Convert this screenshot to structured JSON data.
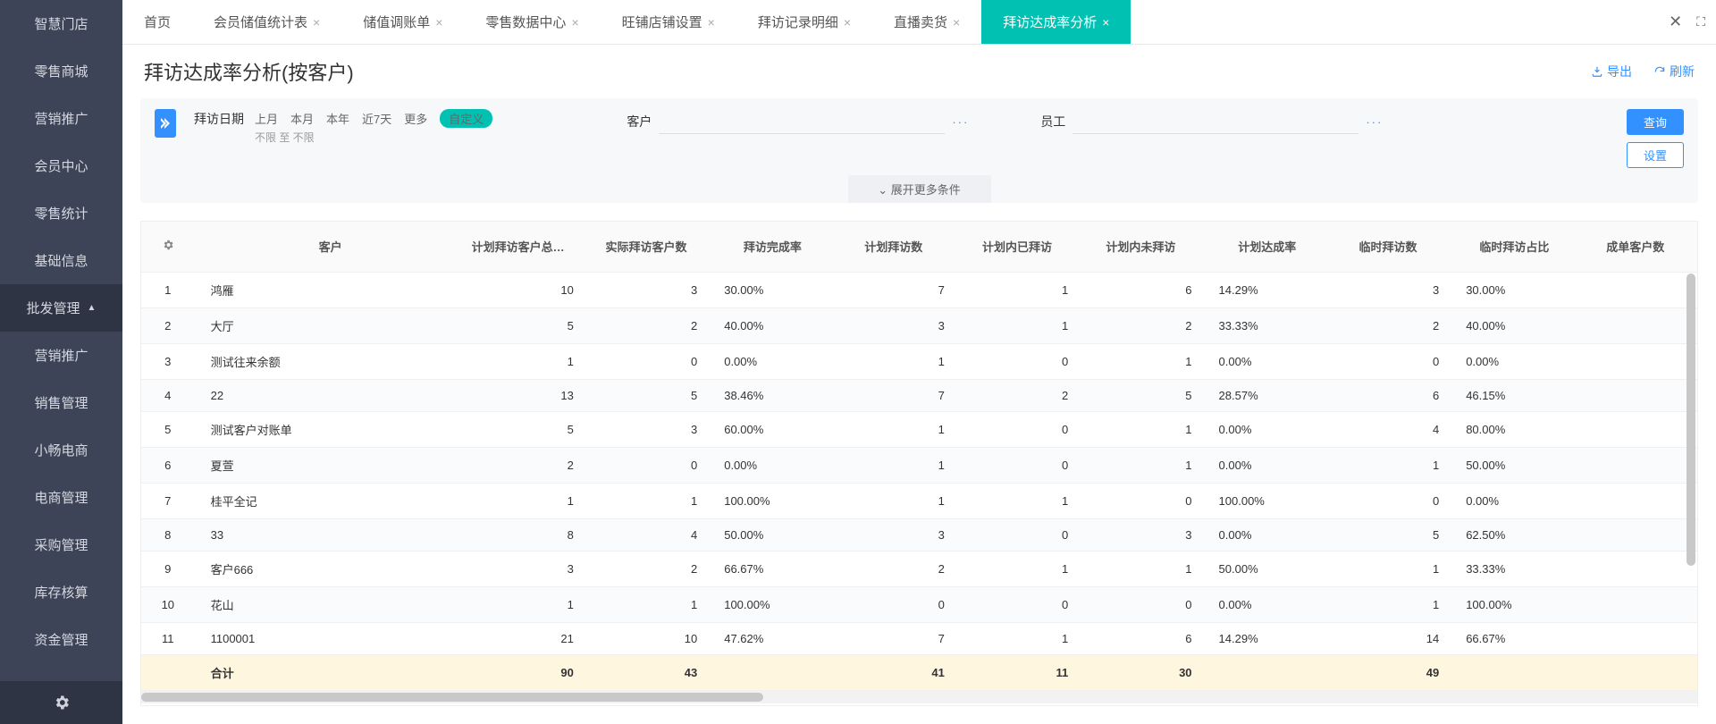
{
  "sidebar": {
    "items": [
      {
        "label": "智慧门店"
      },
      {
        "label": "零售商城"
      },
      {
        "label": "营销推广"
      },
      {
        "label": "会员中心"
      },
      {
        "label": "零售统计"
      },
      {
        "label": "基础信息"
      },
      {
        "label": "批发管理",
        "expanded": true
      },
      {
        "label": "营销推广"
      },
      {
        "label": "销售管理"
      },
      {
        "label": "小畅电商"
      },
      {
        "label": "电商管理"
      },
      {
        "label": "采购管理"
      },
      {
        "label": "库存核算"
      },
      {
        "label": "资金管理"
      }
    ]
  },
  "tabs": [
    {
      "label": "首页",
      "closable": false
    },
    {
      "label": "会员储值统计表",
      "closable": true
    },
    {
      "label": "储值调账单",
      "closable": true
    },
    {
      "label": "零售数据中心",
      "closable": true
    },
    {
      "label": "旺铺店铺设置",
      "closable": true
    },
    {
      "label": "拜访记录明细",
      "closable": true
    },
    {
      "label": "直播卖货",
      "closable": true
    },
    {
      "label": "拜访达成率分析",
      "closable": true,
      "active": true
    }
  ],
  "page": {
    "title": "拜访达成率分析(按客户)",
    "export": "导出",
    "refresh": "刷新"
  },
  "filter": {
    "date_label": "拜访日期",
    "opts": [
      "上月",
      "本月",
      "本年",
      "近7天",
      "更多"
    ],
    "custom": "自定义",
    "range": "不限 至 不限",
    "customer": "客户",
    "employee": "员工",
    "search": "查询",
    "settings": "设置",
    "expand": "展开更多条件"
  },
  "table": {
    "columns": [
      "",
      "客户",
      "计划拜访客户总数（计划+临时）",
      "实际拜访客户数",
      "拜访完成率",
      "计划拜访数",
      "计划内已拜访",
      "计划内未拜访",
      "计划达成率",
      "临时拜访数",
      "临时拜访占比",
      "成单客户数"
    ],
    "rows": [
      {
        "i": "1",
        "c": "鸿雁",
        "v": [
          "10",
          "3",
          "30.00%",
          "7",
          "1",
          "6",
          "14.29%",
          "3",
          "30.00%"
        ]
      },
      {
        "i": "2",
        "c": "大厅",
        "v": [
          "5",
          "2",
          "40.00%",
          "3",
          "1",
          "2",
          "33.33%",
          "2",
          "40.00%"
        ]
      },
      {
        "i": "3",
        "c": "测试往来余额",
        "v": [
          "1",
          "0",
          "0.00%",
          "1",
          "0",
          "1",
          "0.00%",
          "0",
          "0.00%"
        ]
      },
      {
        "i": "4",
        "c": "22",
        "v": [
          "13",
          "5",
          "38.46%",
          "7",
          "2",
          "5",
          "28.57%",
          "6",
          "46.15%"
        ]
      },
      {
        "i": "5",
        "c": "测试客户对账单",
        "v": [
          "5",
          "3",
          "60.00%",
          "1",
          "0",
          "1",
          "0.00%",
          "4",
          "80.00%"
        ]
      },
      {
        "i": "6",
        "c": "夏萱",
        "v": [
          "2",
          "0",
          "0.00%",
          "1",
          "0",
          "1",
          "0.00%",
          "1",
          "50.00%"
        ]
      },
      {
        "i": "7",
        "c": "桂平全记",
        "v": [
          "1",
          "1",
          "100.00%",
          "1",
          "1",
          "0",
          "100.00%",
          "0",
          "0.00%"
        ]
      },
      {
        "i": "8",
        "c": "33",
        "v": [
          "8",
          "4",
          "50.00%",
          "3",
          "0",
          "3",
          "0.00%",
          "5",
          "62.50%"
        ]
      },
      {
        "i": "9",
        "c": "客户666",
        "v": [
          "3",
          "2",
          "66.67%",
          "2",
          "1",
          "1",
          "50.00%",
          "1",
          "33.33%"
        ]
      },
      {
        "i": "10",
        "c": "花山",
        "v": [
          "1",
          "1",
          "100.00%",
          "0",
          "0",
          "0",
          "0.00%",
          "1",
          "100.00%"
        ]
      },
      {
        "i": "11",
        "c": "1100001",
        "v": [
          "21",
          "10",
          "47.62%",
          "7",
          "1",
          "6",
          "14.29%",
          "14",
          "66.67%"
        ]
      }
    ],
    "total": {
      "label": "合计",
      "v": [
        "90",
        "43",
        "",
        "41",
        "11",
        "30",
        "",
        "49",
        ""
      ]
    }
  },
  "colors": {
    "accent": "#00c1b2",
    "primary": "#3390ff",
    "sidebar": "#3d4457"
  }
}
